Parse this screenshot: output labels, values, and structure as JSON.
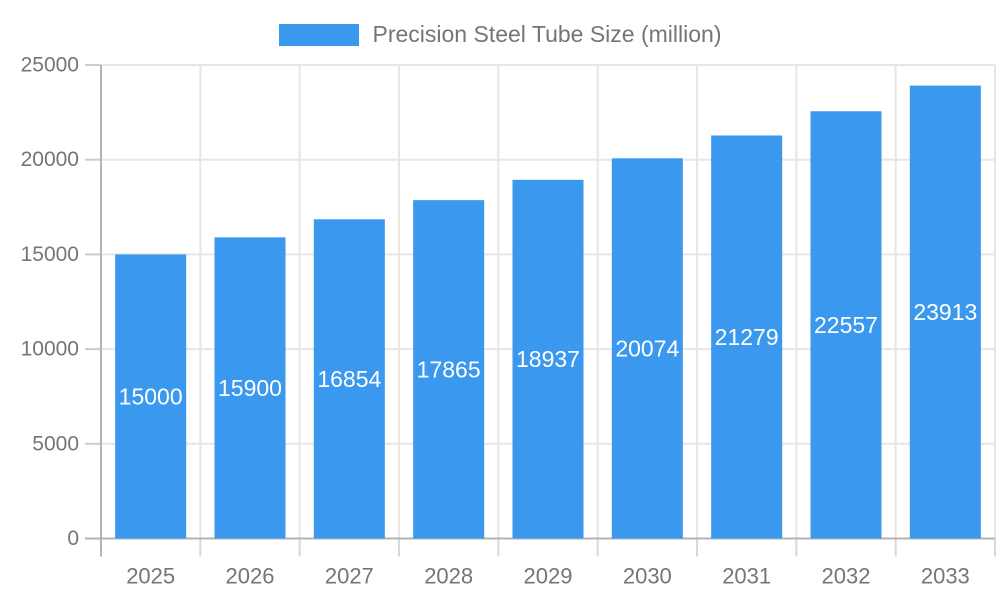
{
  "chart_data": {
    "type": "bar",
    "title": "Precision Steel Tube Size (million)",
    "categories": [
      "2025",
      "2026",
      "2027",
      "2028",
      "2029",
      "2030",
      "2031",
      "2032",
      "2033"
    ],
    "values": [
      15000,
      15900,
      16854,
      17865,
      18937,
      20074,
      21279,
      22557,
      23913
    ],
    "xlabel": "",
    "ylabel": "",
    "ylim": [
      0,
      25000
    ],
    "y_tick_step": 5000,
    "y_tick_labels": [
      "0",
      "5000",
      "10000",
      "15000",
      "20000",
      "25000"
    ],
    "legend_position": "top-center",
    "grid": "horizontal-and-vertical",
    "bar_color": "#3a99ef",
    "bar_label_color": "#ffffff",
    "axis_label_color": "#757575",
    "grid_color": "#e6e6e6",
    "tick_color": "#cccccc",
    "x_tick_color": "#d9d9d9",
    "axis_line_color": "#b3b3b3",
    "background_color": "#ffffff"
  }
}
